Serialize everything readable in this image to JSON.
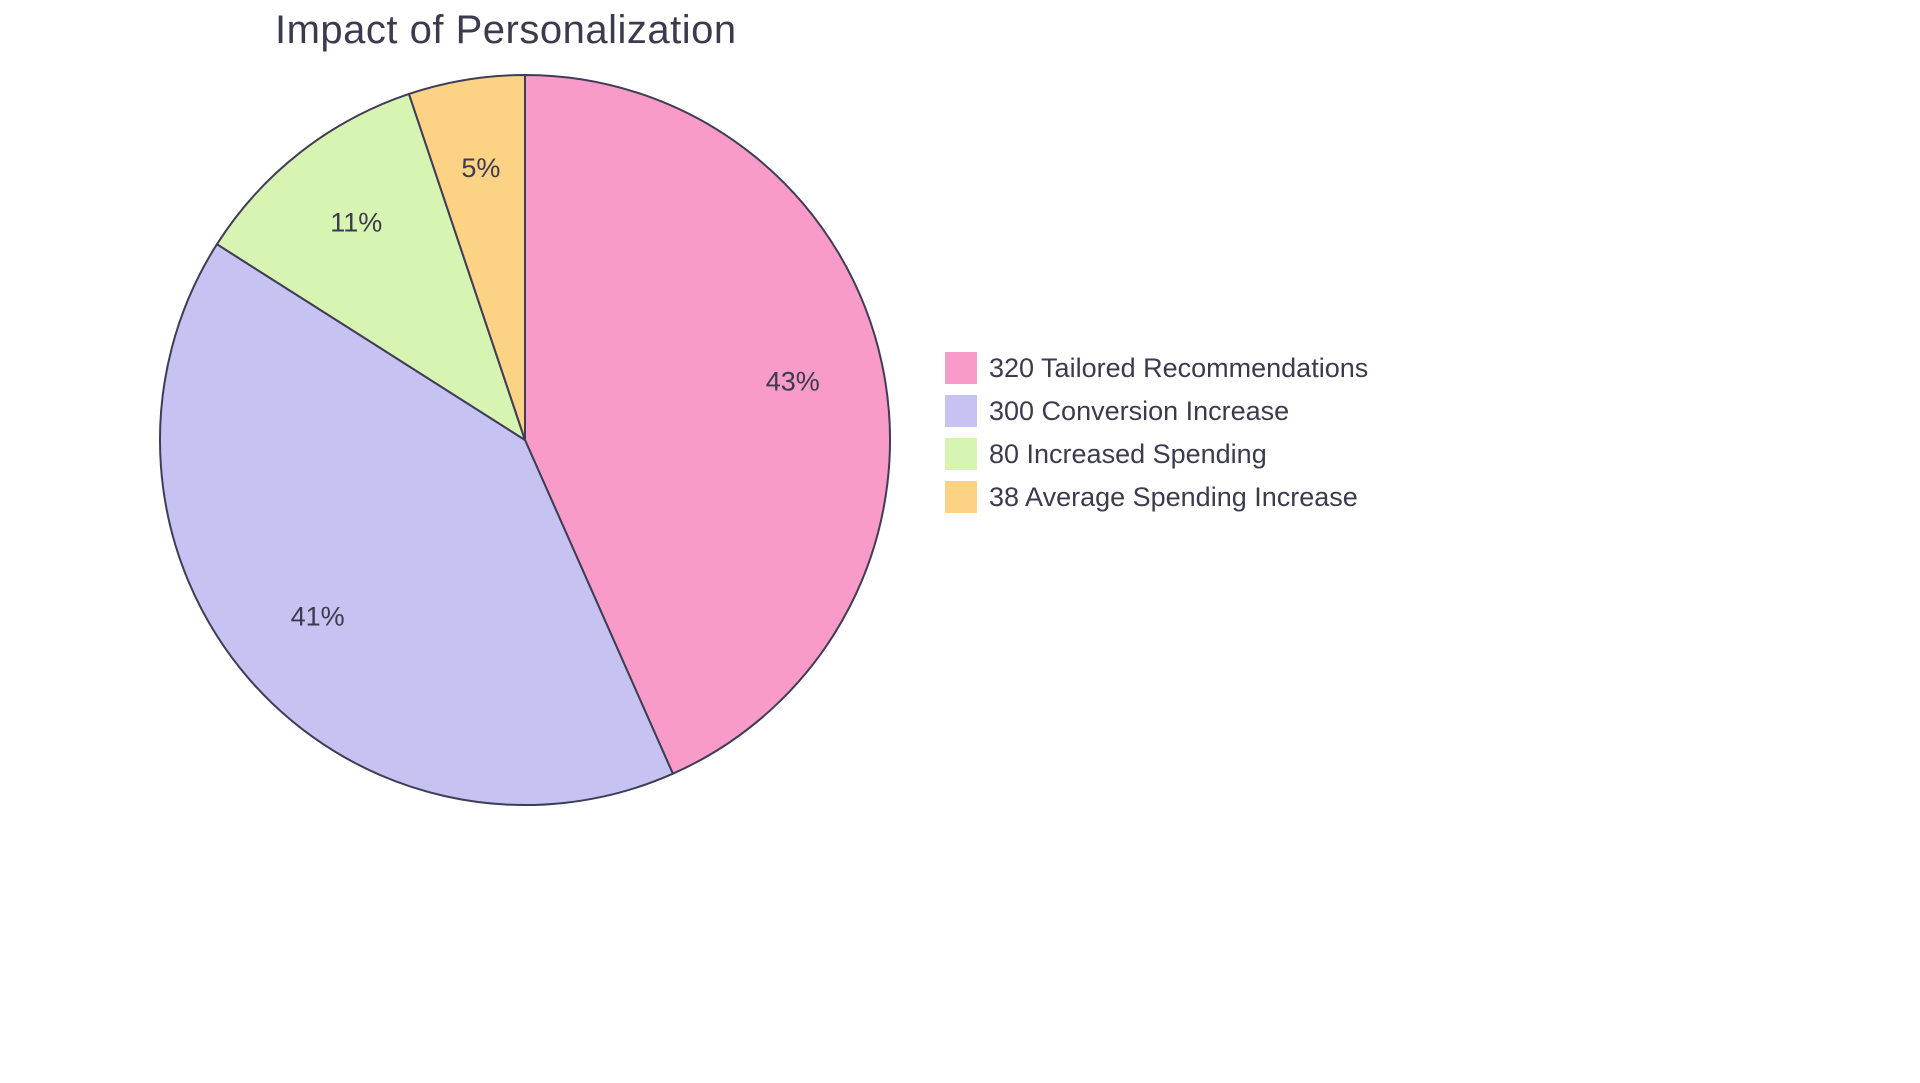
{
  "chart_data": {
    "type": "pie",
    "title": "Impact of Personalization",
    "slices": [
      {
        "label": "320 Tailored Recommendations",
        "value": 320,
        "pct_label": "43%",
        "color": "#F99BC9"
      },
      {
        "label": "300 Conversion Increase",
        "value": 300,
        "pct_label": "41%",
        "color": "#C6C3F2"
      },
      {
        "label": "80 Increased Spending",
        "value": 80,
        "pct_label": "11%",
        "color": "#D7F4B2"
      },
      {
        "label": "38 Average Spending Increase",
        "value": 38,
        "pct_label": "5%",
        "color": "#FCD385"
      }
    ],
    "stroke_color": "#3F3D56",
    "text_color": "#3B3B4D",
    "legend_position": "right",
    "start_angle": "12-oclock",
    "direction": "clockwise"
  }
}
